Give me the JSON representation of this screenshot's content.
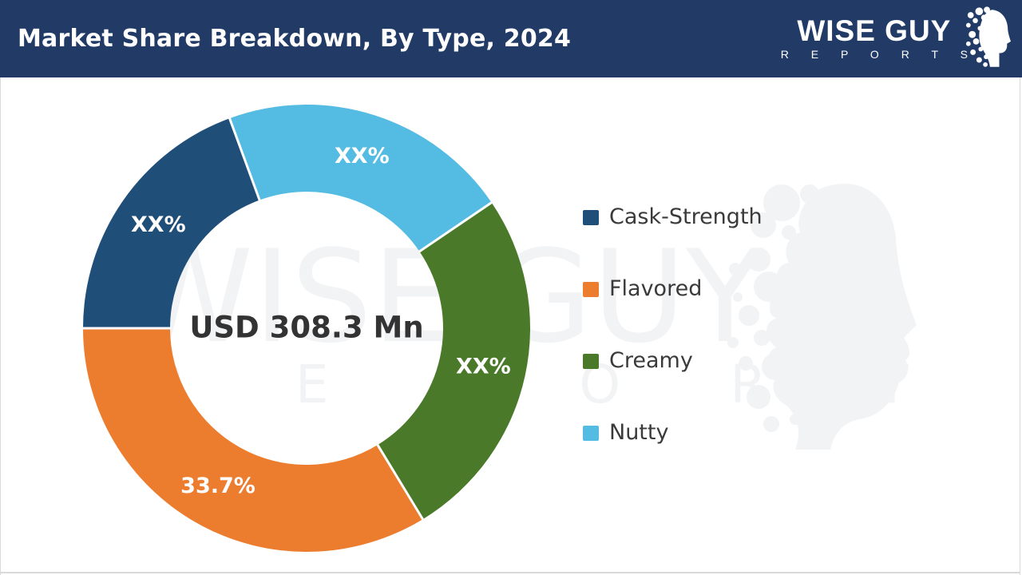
{
  "header": {
    "title": "Market Share Breakdown, By Type, 2024",
    "logo": {
      "wordmark": "WISE GUY",
      "subtext": "R E P O R T S"
    }
  },
  "watermark": {
    "line1": "WISE GUY",
    "line2": "R E P O R T S"
  },
  "colors": {
    "header_bg": "#213A66",
    "page_bg": "#FFFFFF",
    "border_line": "#D9D9D9",
    "title_text": "#FFFFFF",
    "center_text": "#333333",
    "legend_text": "#3A3A3A",
    "segment_label_text": "#FFFFFF",
    "watermark_tint": "#F2F3F5"
  },
  "chart_data": {
    "type": "pie",
    "variant": "donut",
    "title": "Market Share Breakdown, By Type, 2024",
    "center_text": "USD 308.3 Mn",
    "start_angle_deg": 270,
    "clockwise": true,
    "inner_radius_ratio": 0.61,
    "legend_position": "right",
    "segments": [
      {
        "name": "Cask-Strength",
        "color": "#1F4E79",
        "value_pct": 19.4,
        "data_label": "XX%"
      },
      {
        "name": "Nutty",
        "color": "#54BBE3",
        "value_pct": 21.1,
        "data_label": "XX%"
      },
      {
        "name": "Creamy",
        "color": "#4A7A29",
        "value_pct": 25.8,
        "data_label": "XX%"
      },
      {
        "name": "Flavored",
        "color": "#EC7D2F",
        "value_pct": 33.7,
        "data_label": "33.7%"
      }
    ],
    "legend": [
      {
        "label": "Cask-Strength",
        "color": "#1F4E79"
      },
      {
        "label": "Flavored",
        "color": "#EC7D2F"
      },
      {
        "label": "Creamy",
        "color": "#4A7A29"
      },
      {
        "label": "Nutty",
        "color": "#54BBE3"
      }
    ]
  }
}
